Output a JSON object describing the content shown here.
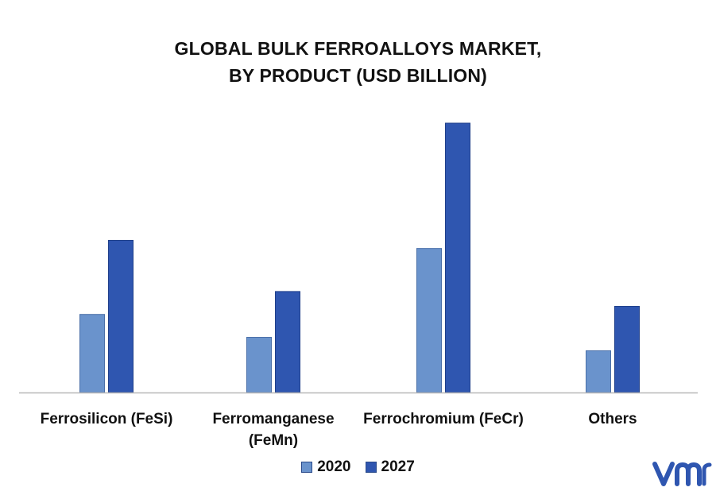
{
  "chart_data": {
    "type": "bar",
    "title_lines": [
      "GLOBAL BULK FERROALLOYS MARKET,",
      "BY PRODUCT (USD BILLION)"
    ],
    "categories": [
      [
        "Ferrosilicon (FeSi)"
      ],
      [
        "Ferromanganese",
        "(FeMn)"
      ],
      [
        "Ferrochromium (FeCr)"
      ],
      [
        "Others"
      ]
    ],
    "series": [
      {
        "name": "2020",
        "color": "#6a93cc",
        "values": [
          2.9,
          2.05,
          5.35,
          1.55
        ]
      },
      {
        "name": "2027",
        "color": "#2f56b0",
        "values": [
          5.65,
          3.75,
          10.0,
          3.2
        ]
      }
    ],
    "ylim": [
      0,
      10.0
    ],
    "grid": false,
    "legend_position": "bottom-center"
  },
  "logo": {
    "icon": "vmr-logo-icon",
    "color": "#2f56b0"
  }
}
